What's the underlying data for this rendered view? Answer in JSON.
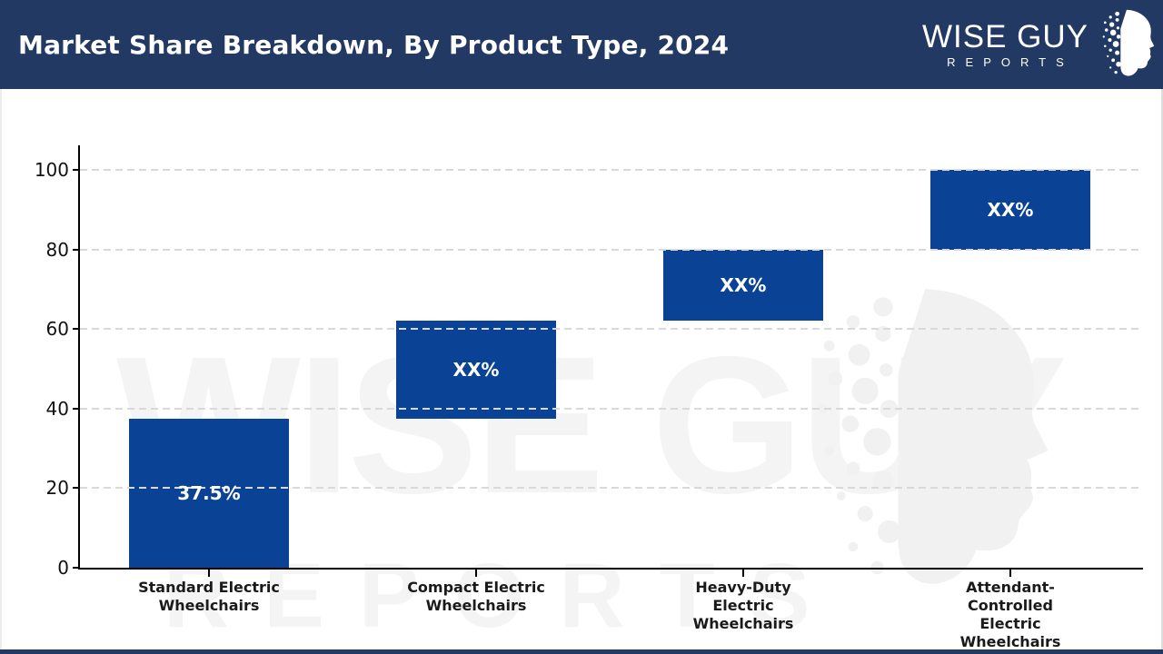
{
  "header": {
    "title": "Market Share Breakdown, By Product Type, 2024",
    "logo": {
      "wordmark": "WISE GUY",
      "subtext": "REPORTS"
    }
  },
  "watermark": {
    "line1": "WISE GUY",
    "line2": "REPORTS"
  },
  "chart_data": {
    "type": "bar",
    "subtype": "floating-waterfall",
    "title": "Market Share Breakdown, By Product Type, 2024",
    "xlabel": "",
    "ylabel": "",
    "ylim": [
      0,
      100
    ],
    "y_ticks": [
      0,
      20,
      40,
      60,
      80,
      100
    ],
    "grid": "horizontal-dashed",
    "legend": "none",
    "categories": [
      "Standard Electric Wheelchairs",
      "Compact Electric Wheelchairs",
      "Heavy-Duty Electric Wheelchairs",
      "Attendant-Controlled Electric Wheelchairs"
    ],
    "bars": [
      {
        "category_lines": [
          "Standard Electric",
          "Wheelchairs"
        ],
        "base": 0,
        "top": 37.5,
        "label": "37.5%"
      },
      {
        "category_lines": [
          "Compact Electric",
          "Wheelchairs"
        ],
        "base": 37.5,
        "top": 62,
        "label": "XX%"
      },
      {
        "category_lines": [
          "Heavy-Duty",
          "Electric",
          "Wheelchairs"
        ],
        "base": 62,
        "top": 80,
        "label": "XX%"
      },
      {
        "category_lines": [
          "Attendant-",
          "Controlled",
          "Electric",
          "Wheelchairs"
        ],
        "base": 80,
        "top": 100,
        "label": "XX%"
      }
    ],
    "bar_color": "#0a4296",
    "bar_label_color": "#ffffff"
  },
  "colors": {
    "header_bg": "#223963",
    "footer_bg": "#223963",
    "bar": "#0a4296",
    "grid": "#d9d9d9",
    "axis": "#000000",
    "tick_label": "#111111",
    "watermark": "#f4f4f4"
  }
}
